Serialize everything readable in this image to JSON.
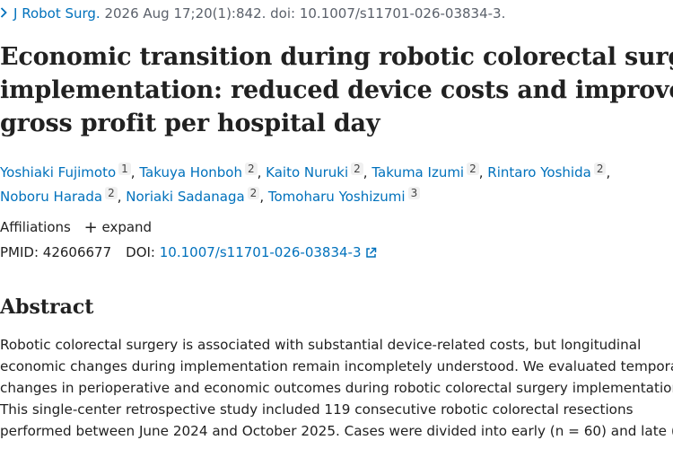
{
  "citation": {
    "journal": "J Robot Surg.",
    "details": " 2026 Aug 17;20(1):842. doi: 10.1007/s11701-026-03834-3."
  },
  "article": {
    "title_lines": [
      "Economic transition during robotic colorectal surgery",
      "implementation: reduced device costs and improved",
      "gross profit per hospital day"
    ]
  },
  "authors": [
    {
      "name": "Yoshiaki Fujimoto",
      "aff": "1"
    },
    {
      "name": "Takuya Honboh",
      "aff": "2"
    },
    {
      "name": "Kaito Nuruki",
      "aff": "2"
    },
    {
      "name": "Takuma Izumi",
      "aff": "2"
    },
    {
      "name": "Rintaro Yoshida",
      "aff": "2"
    },
    {
      "name": "Noboru Harada",
      "aff": "2"
    },
    {
      "name": "Noriaki Sadanaga",
      "aff": "2"
    },
    {
      "name": "Tomoharu Yoshizumi",
      "aff": "3"
    }
  ],
  "affiliations": {
    "label": "Affiliations",
    "expand_label": "expand"
  },
  "ids": {
    "pmid_label": "PMID: ",
    "pmid": "42606677",
    "doi_label": "DOI: ",
    "doi": "10.1007/s11701-026-03834-3"
  },
  "abstract": {
    "heading": "Abstract",
    "lines": [
      "Robotic colorectal surgery is associated with substantial device-related costs, but longitudinal",
      "economic changes during implementation remain incompletely understood. We evaluated temporal",
      "changes in perioperative and economic outcomes during robotic colorectal surgery implementation.",
      "This single-center retrospective study included 119 consecutive robotic colorectal resections",
      "performed between June 2024 and October 2025. Cases were divided into early (n = 60) and late (n ="
    ]
  },
  "colors": {
    "link": "#0071bc",
    "text": "#212121",
    "muted": "#5b616b"
  }
}
